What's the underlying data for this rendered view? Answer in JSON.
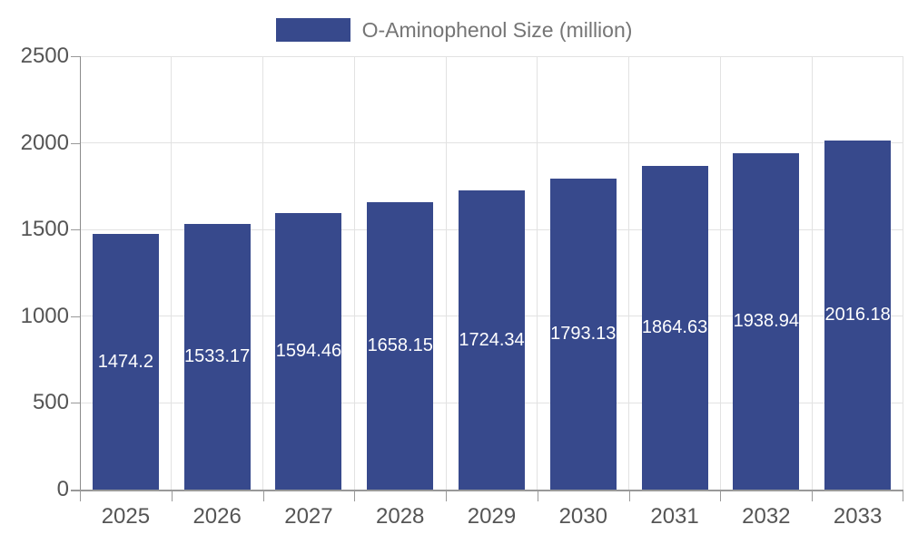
{
  "legend": {
    "label": "O-Aminophenol Size (million)"
  },
  "chart_data": {
    "type": "bar",
    "title": "",
    "xlabel": "",
    "ylabel": "",
    "categories": [
      "2025",
      "2026",
      "2027",
      "2028",
      "2029",
      "2030",
      "2031",
      "2032",
      "2033"
    ],
    "series": [
      {
        "name": "O-Aminophenol Size (million)",
        "values": [
          1474.2,
          1533.17,
          1594.46,
          1658.15,
          1724.34,
          1793.13,
          1864.63,
          1938.94,
          2016.18
        ]
      }
    ],
    "value_labels": [
      "1474.2",
      "1533.17",
      "1594.46",
      "1658.15",
      "1724.34",
      "1793.13",
      "1864.63",
      "1938.94",
      "2016.18"
    ],
    "ylim": [
      0,
      2500
    ],
    "yticks": [
      0,
      500,
      1000,
      1500,
      2000,
      2500
    ],
    "grid": true,
    "legend_position": "top-center",
    "colors": {
      "bar": "#37498c",
      "bar_label_text": "#ffffff",
      "axis_text": "#555555",
      "legend_text": "#757575",
      "gridline": "#e2e2e2",
      "axis_line": "#999999",
      "background": "#ffffff"
    }
  }
}
